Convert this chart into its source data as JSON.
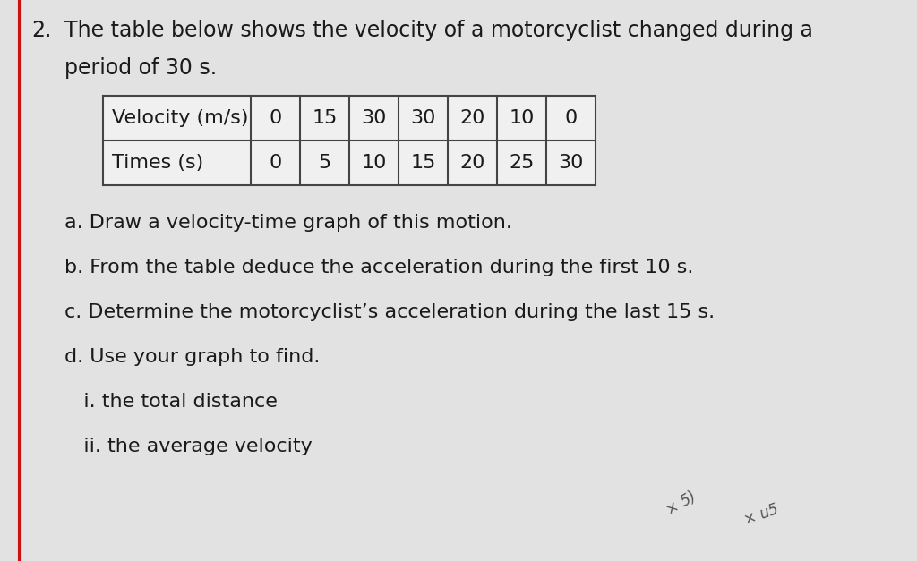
{
  "question_number": "2.",
  "question_text_line1": "The table below shows the velocity of a motorcyclist changed during a",
  "question_text_line2": "period of 30 s.",
  "table": {
    "row1_label": "Velocity (m/s)",
    "row1_values": [
      "0",
      "15",
      "30",
      "30",
      "20",
      "10",
      "0"
    ],
    "row2_label": "Times (s)",
    "row2_values": [
      "0",
      "5",
      "10",
      "15",
      "20",
      "25",
      "30"
    ]
  },
  "sub_questions": [
    "a. Draw a velocity-time graph of this motion.",
    "b. From the table deduce the acceleration during the first 10 s.",
    "c. Determine the motorcyclist’s acceleration during the last 15 s.",
    "d. Use your graph to find.",
    "   i. the total distance",
    "   ii. the average velocity"
  ],
  "background_color": "#e2e2e2",
  "text_color": "#1a1a1a",
  "table_bg": "#f0f0f0",
  "red_line_color": "#cc1111",
  "font_size_question": 17,
  "font_size_table": 16,
  "font_size_sub": 16
}
